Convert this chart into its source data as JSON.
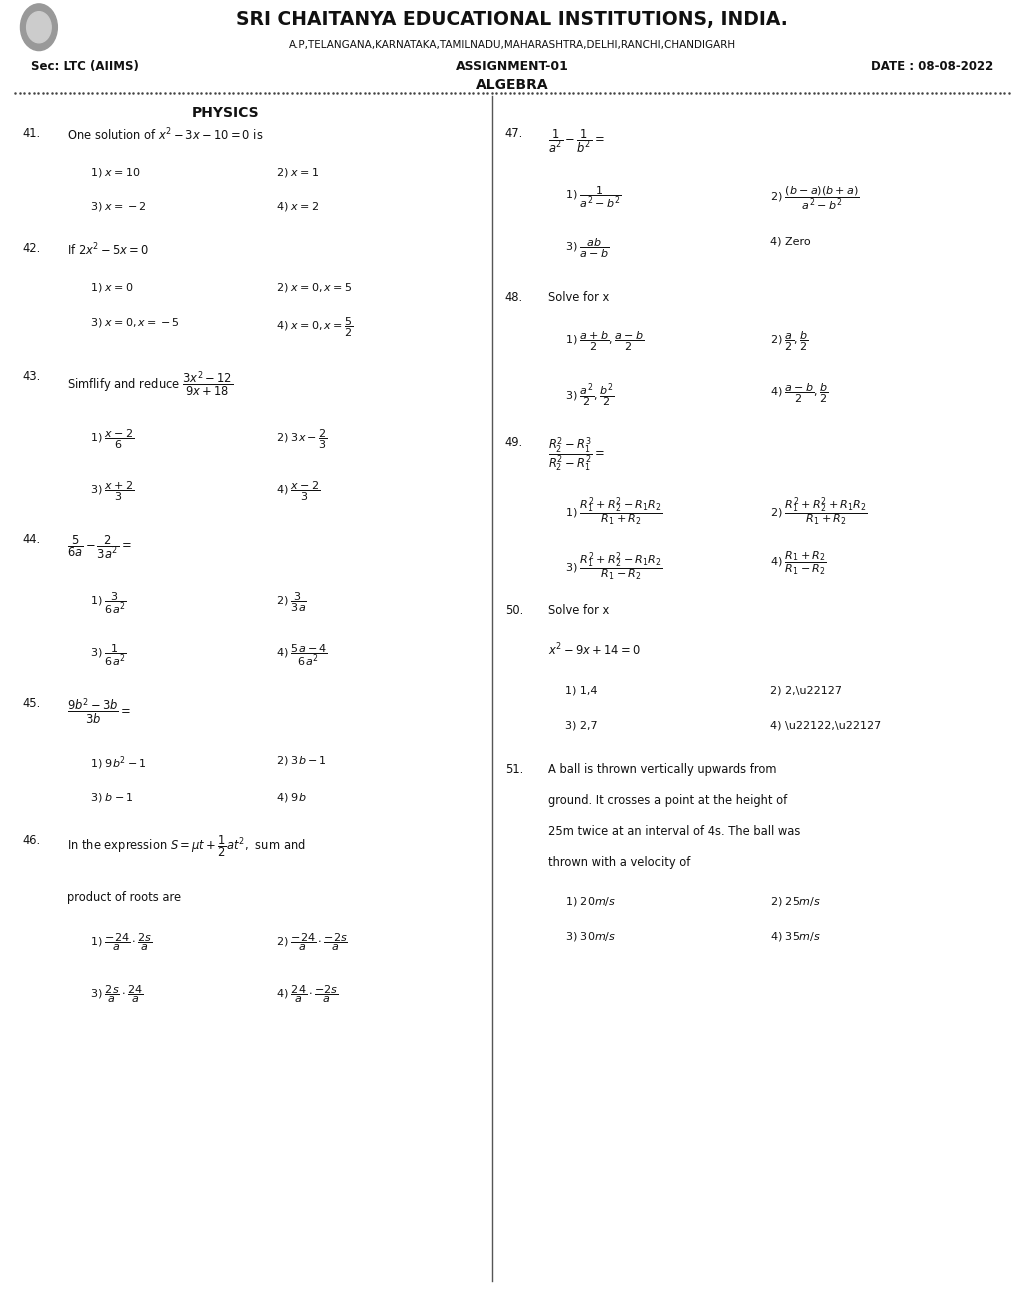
{
  "title_main": "SRI CHAITANYA EDUCATIONAL INSTITUTIONS, INDIA.",
  "subtitle1": "A.P,TELANGANA,KARNATAKA,TAMILNADU,MAHARASHTRA,DELHI,RANCHI,CHANDIGARH",
  "left_header": "Sec: LTC (AIIMS)",
  "center_header": "ASSIGNMENT-01",
  "right_header": "DATE : 08-08-2022",
  "subject": "ALGEBRA",
  "bg_color": "#ffffff",
  "text_color": "#111111",
  "left_section_title": "PHYSICS"
}
